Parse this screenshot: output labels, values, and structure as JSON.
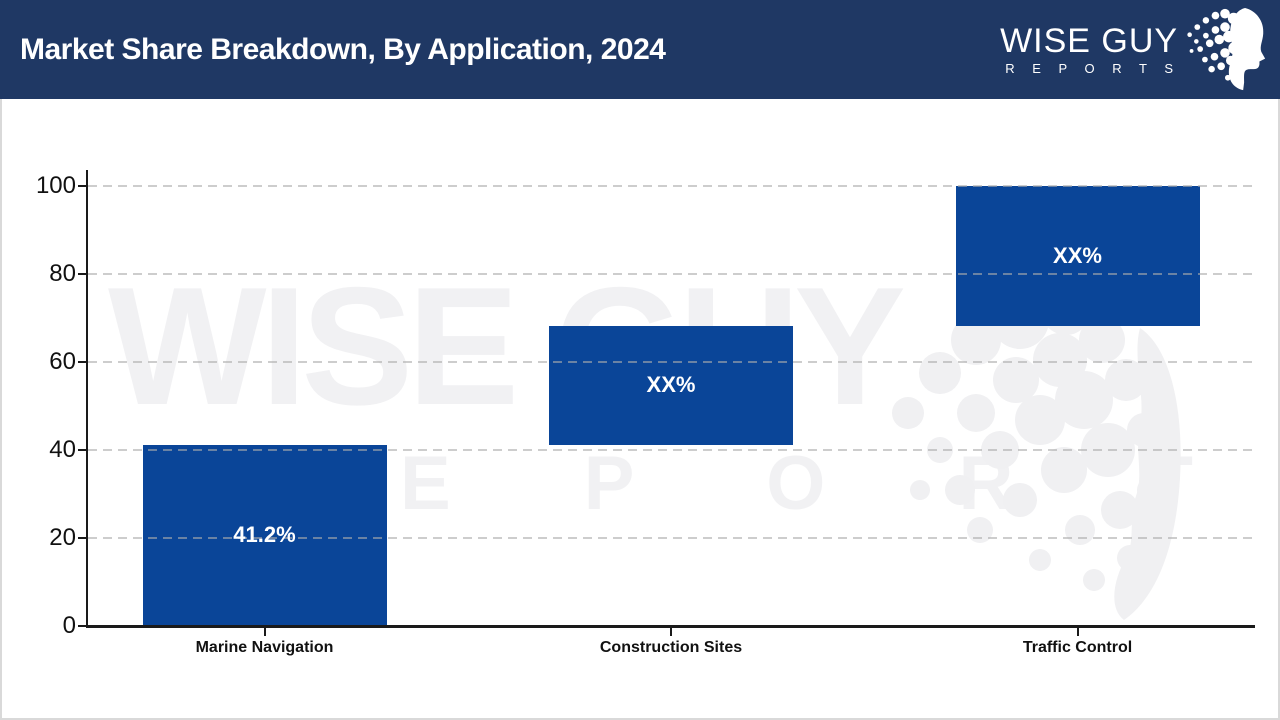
{
  "header": {
    "title": "Market Share Breakdown, By Application, 2024",
    "logo": {
      "line1": "WISE GUY",
      "line2": "R E P O R T S"
    }
  },
  "watermark": {
    "line1": "WISE GUY",
    "line2": "R E P O R T S"
  },
  "chart_data": {
    "type": "bar",
    "subtype": "waterfall",
    "title": "Market Share Breakdown, By Application, 2024",
    "categories": [
      "Marine Navigation",
      "Construction Sites",
      "Traffic Control"
    ],
    "segments": [
      {
        "category": "Marine Navigation",
        "start": 0,
        "end": 41.2,
        "label": "41.2%"
      },
      {
        "category": "Construction Sites",
        "start": 41.2,
        "end": 68.2,
        "label": "XX%"
      },
      {
        "category": "Traffic Control",
        "start": 68.2,
        "end": 100,
        "label": "XX%"
      }
    ],
    "yticks": [
      0,
      20,
      40,
      60,
      80,
      100
    ],
    "ylim": [
      0,
      103.6
    ],
    "xlabel": "",
    "ylabel": "",
    "legend": "none",
    "grid": "horizontal-dashed",
    "bar_color": "#0a4598",
    "bar_label_color": "#ffffff"
  },
  "colors": {
    "header_bg": "#1f3864",
    "bar": "#0a4598",
    "axis": "#1a1a1a",
    "grid": "#c8c8c8",
    "watermark": "#f1f1f3",
    "page_border": "#d9d9d9"
  }
}
